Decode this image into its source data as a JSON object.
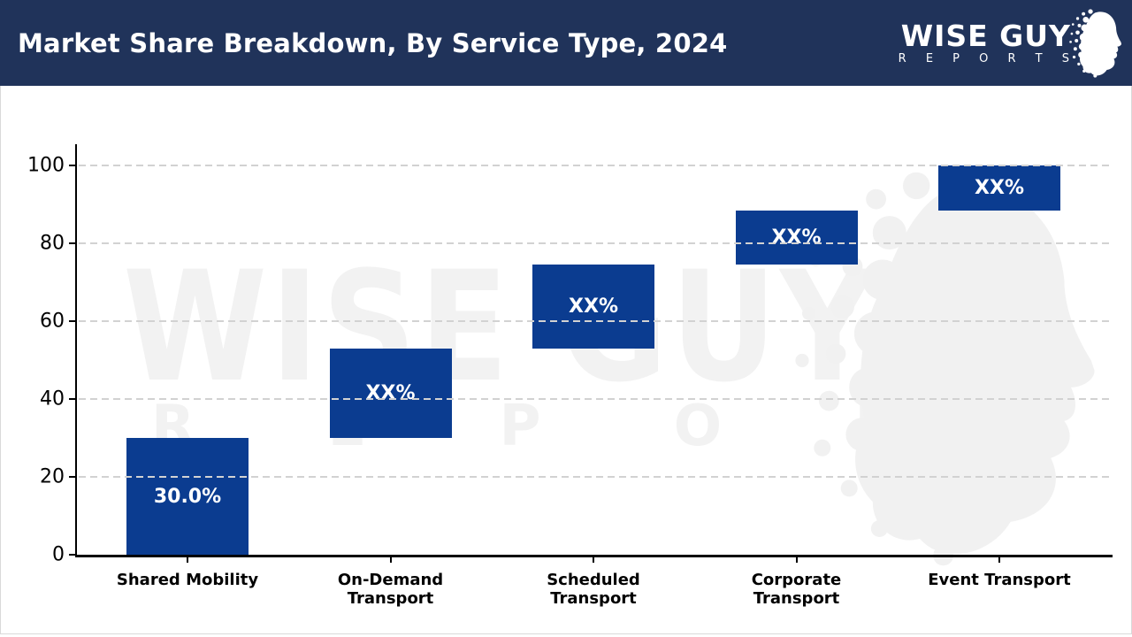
{
  "header": {
    "title": "Market Share Breakdown, By Service Type, 2024",
    "bg_color": "#20335a",
    "logo": {
      "brand_line1": "WISE GUY",
      "brand_line2": "R E P O R T S"
    }
  },
  "watermark": {
    "brand_line1": "WISE GUY",
    "brand_line2": "R E P O R T S"
  },
  "chart_data": {
    "type": "bar",
    "variant": "waterfall",
    "title": "Market Share Breakdown, By Service Type, 2024",
    "xlabel": "",
    "ylabel": "",
    "categories": [
      "Shared Mobility",
      "On-Demand Transport",
      "Scheduled Transport",
      "Corporate Transport",
      "Event Transport"
    ],
    "segments": [
      {
        "category": "Shared Mobility",
        "start": 0,
        "end": 30,
        "label": "30.0%"
      },
      {
        "category": "On-Demand Transport",
        "start": 30,
        "end": 53,
        "label": "XX%"
      },
      {
        "category": "Scheduled Transport",
        "start": 53,
        "end": 74.5,
        "label": "XX%"
      },
      {
        "category": "Corporate Transport",
        "start": 74.5,
        "end": 88.5,
        "label": "XX%"
      },
      {
        "category": "Event Transport",
        "start": 88.5,
        "end": 100,
        "label": "XX%"
      }
    ],
    "yticks": [
      0,
      20,
      40,
      60,
      80,
      100
    ],
    "ylim": [
      0,
      105
    ],
    "grid": {
      "axis": "y",
      "style": "dashed",
      "color": "#d2d2d2",
      "drawn_over_bars": true
    },
    "legend": "none",
    "bar_color": "#0b3c90",
    "bar_label_color": "#ffffff",
    "axis_color": "#000000"
  }
}
